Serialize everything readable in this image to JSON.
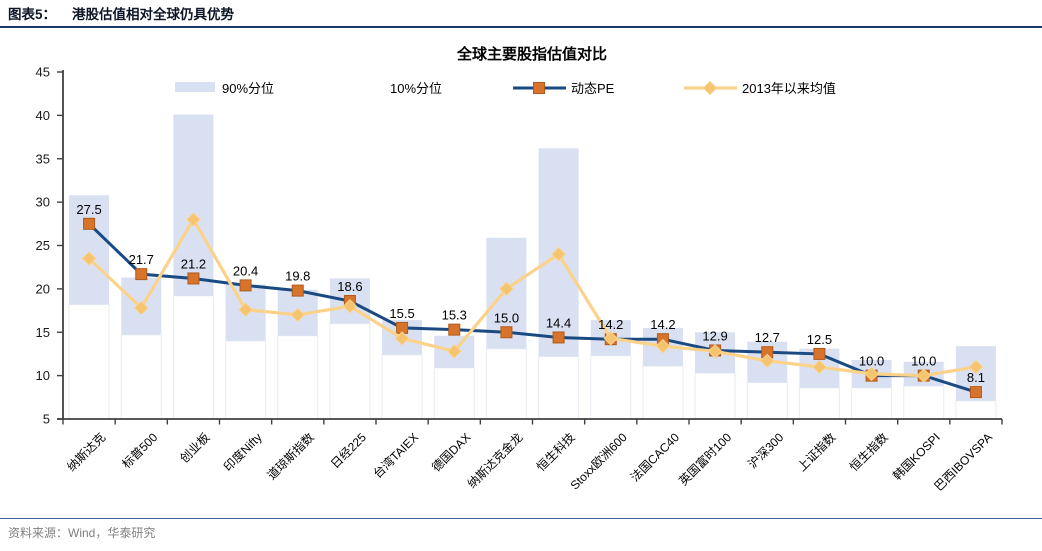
{
  "figure": {
    "label": "图表5：",
    "title": "港股估值相对全球仍具优势"
  },
  "footer": {
    "source": "资料来源：Wind，华泰研究"
  },
  "chart_data": {
    "type": "bar",
    "subtype": "floating-percentile-range-bars-with-line-overlays",
    "title": "全球主要股指估值对比",
    "xlabel": "",
    "ylabel": "",
    "ylim": [
      5,
      45
    ],
    "yticks": [
      5,
      10,
      15,
      20,
      25,
      30,
      35,
      40,
      45
    ],
    "grid": false,
    "legend_position": "top",
    "legend": [
      {
        "label": "90%分位",
        "swatch": "band"
      },
      {
        "label": "10%分位",
        "swatch": "white-band"
      },
      {
        "label": "动态PE",
        "swatch": "line-square"
      },
      {
        "label": "2013年以来均值",
        "swatch": "line-diamond"
      }
    ],
    "categories": [
      "纳斯达克",
      "标普500",
      "创业板",
      "印度Nifty",
      "道琼斯指数",
      "日经225",
      "台湾TAIEX",
      "德国DAX",
      "纳斯达克金龙",
      "恒生科技",
      "Stoxx欧洲600",
      "法国CAC40",
      "英国富时100",
      "沪深300",
      "上证指数",
      "恒生指数",
      "韩国KOSPI",
      "巴西IBOVSPA"
    ],
    "series": [
      {
        "name": "动态PE",
        "type": "line",
        "marker": "square",
        "values": [
          27.5,
          21.7,
          21.2,
          20.4,
          19.8,
          18.6,
          15.5,
          15.3,
          15.0,
          14.4,
          14.2,
          14.2,
          12.9,
          12.7,
          12.5,
          10.0,
          10.0,
          8.1
        ],
        "data_labels": true
      },
      {
        "name": "2013年以来均值",
        "type": "line",
        "marker": "diamond",
        "values": [
          23.5,
          17.8,
          28.0,
          17.6,
          17.0,
          18.0,
          14.3,
          12.8,
          20.0,
          24.0,
          14.3,
          13.4,
          12.8,
          11.7,
          11.0,
          10.2,
          10.0,
          11.0
        ],
        "data_labels": false
      },
      {
        "name": "10%分位",
        "type": "bar-range-lower-bound",
        "estimated": true,
        "values": [
          18.2,
          14.7,
          19.2,
          14.0,
          14.6,
          16.0,
          12.4,
          10.9,
          13.1,
          12.2,
          12.3,
          11.1,
          10.3,
          9.2,
          8.6,
          8.6,
          8.8,
          7.1
        ]
      },
      {
        "name": "90%分位",
        "type": "bar-range-upper-bound",
        "estimated": true,
        "values": [
          30.8,
          21.3,
          40.1,
          20.5,
          19.9,
          21.2,
          16.4,
          14.6,
          25.9,
          36.2,
          16.4,
          15.5,
          15.0,
          13.9,
          13.1,
          11.8,
          11.6,
          13.4
        ]
      }
    ],
    "colors": {
      "band_fill": "#d9e0f2",
      "white_band_fill": "#ffffff",
      "white_band_stroke": "#e8ecf4",
      "pe_line": "#1a4a82",
      "pe_marker_fill": "#d8732c",
      "pe_marker_stroke": "#b05a1a",
      "mean_line": "#fbd289",
      "mean_marker_fill": "#f6c46f",
      "axis": "#404040",
      "label_text": "#000000",
      "header_rule": "#1f3864",
      "footer_rule": "#44619b",
      "source_text": "#808080"
    }
  }
}
